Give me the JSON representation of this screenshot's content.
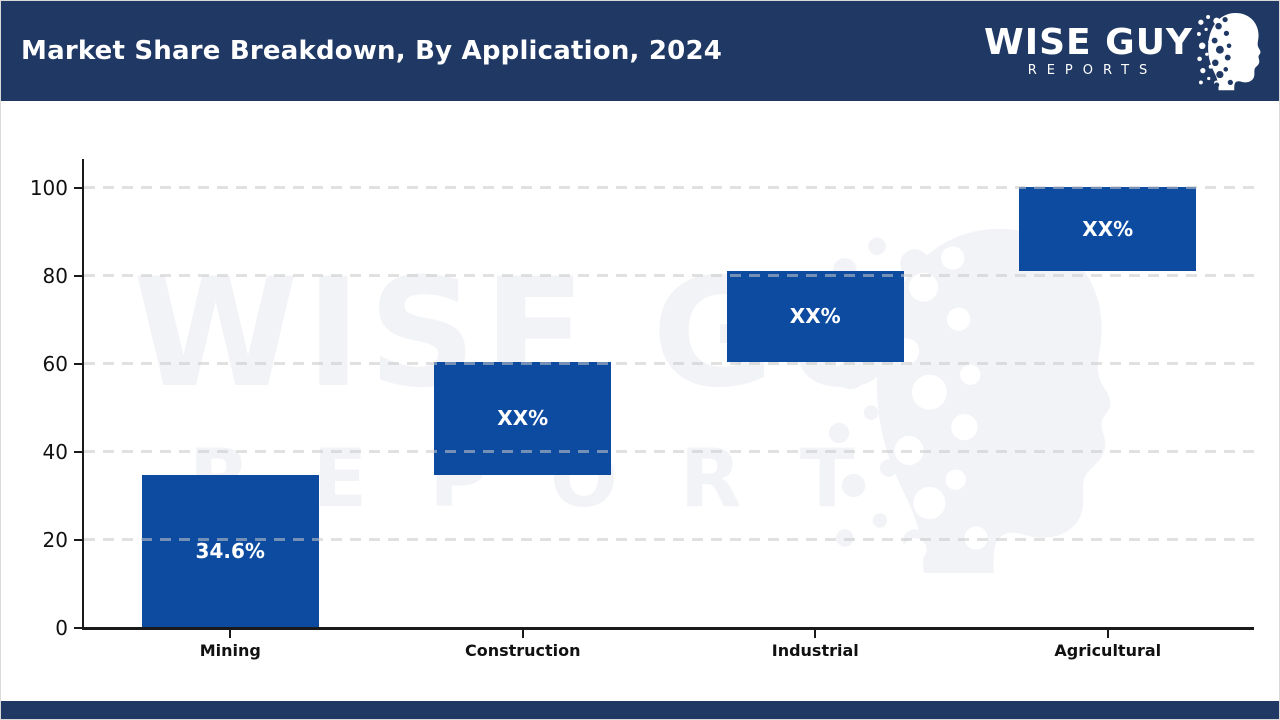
{
  "header": {
    "title": "Market Share Breakdown, By Application, 2024",
    "logo": {
      "wordmark": "WISE GUY",
      "subtext": "REPORTS"
    }
  },
  "watermark": {
    "wordmark": "WISE GUY",
    "subtext": "REPORTS"
  },
  "colors": {
    "header_bg": "#1f3864",
    "footer_bg": "#1f3864",
    "bar": "#0d4ba1",
    "bar_label": "#ffffff",
    "axis": "#1a1a1a",
    "gridline": "rgba(200,200,200,0.55)",
    "watermark": "#f2f3f6"
  },
  "chart_data": {
    "type": "bar",
    "subtype": "waterfall",
    "title": "Market Share Breakdown, By Application, 2024",
    "categories": [
      "Mining",
      "Construction",
      "Industrial",
      "Agricultural"
    ],
    "segments": [
      {
        "category": "Mining",
        "start": 0,
        "end": 34.6,
        "label": "34.6%"
      },
      {
        "category": "Construction",
        "start": 34.6,
        "end": 60.3,
        "label": "XX%"
      },
      {
        "category": "Industrial",
        "start": 60.3,
        "end": 81.0,
        "label": "XX%"
      },
      {
        "category": "Agricultural",
        "start": 81.0,
        "end": 100,
        "label": "XX%"
      }
    ],
    "yticks": [
      0,
      20,
      40,
      60,
      80,
      100
    ],
    "ylim": [
      0,
      105
    ],
    "xlabel": "",
    "ylabel": "",
    "grid": "dashed horizontal, drawn over bars",
    "legend": "none",
    "bar_color": "#0d4ba1"
  }
}
